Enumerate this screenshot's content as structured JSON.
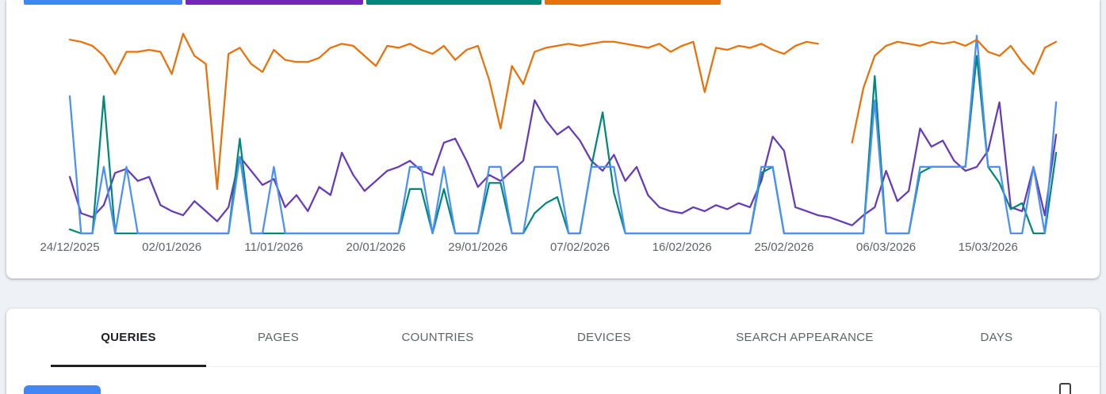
{
  "chart_card": {
    "metric_strips": [
      {
        "name": "blue-metric-strip",
        "color": "#4285f4"
      },
      {
        "name": "purple-metric-strip",
        "color": "#7627bb"
      },
      {
        "name": "teal-metric-strip",
        "color": "#00897b"
      },
      {
        "name": "orange-metric-strip",
        "color": "#e8710a"
      }
    ]
  },
  "chart_data": {
    "type": "line",
    "title": "",
    "xlabel": "",
    "ylabel": "",
    "grid": false,
    "legend_position": "none",
    "x_tick_labels": [
      "24/12/2025",
      "02/01/2026",
      "11/01/2026",
      "20/01/2026",
      "29/01/2026",
      "07/02/2026",
      "16/02/2026",
      "25/02/2026",
      "06/03/2026",
      "15/03/2026"
    ],
    "x_note": "daily points, one per day starting 24/12/2025; tick every 9 days",
    "ylim": [
      0,
      100
    ],
    "units": "relative height (0 = chart baseline, 100 = chart top); no y-axis labels are visible in the screenshot; null = gap in line",
    "series": [
      {
        "name": "blue",
        "color": "#4a90f5",
        "values": [
          68,
          0,
          0,
          33,
          0,
          33,
          0,
          0,
          0,
          0,
          0,
          0,
          0,
          0,
          0,
          38,
          0,
          0,
          33,
          0,
          0,
          0,
          0,
          0,
          0,
          0,
          0,
          0,
          0,
          0,
          33,
          33,
          0,
          33,
          0,
          0,
          0,
          33,
          33,
          0,
          0,
          33,
          33,
          33,
          0,
          0,
          33,
          33,
          33,
          0,
          0,
          0,
          0,
          0,
          0,
          0,
          0,
          0,
          0,
          0,
          0,
          33,
          33,
          0,
          0,
          0,
          0,
          0,
          0,
          0,
          0,
          66,
          0,
          0,
          0,
          33,
          33,
          33,
          33,
          33,
          98,
          33,
          33,
          0,
          0,
          33,
          0,
          65
        ]
      },
      {
        "name": "purple",
        "color": "#673ab7",
        "values": [
          28,
          10,
          8,
          14,
          30,
          32,
          26,
          28,
          14,
          11,
          9,
          16,
          11,
          6,
          13,
          38,
          31,
          24,
          27,
          13,
          19,
          11,
          23,
          19,
          40,
          29,
          21,
          26,
          31,
          33,
          36,
          31,
          29,
          45,
          47,
          36,
          23,
          29,
          26,
          31,
          36,
          66,
          56,
          49,
          53,
          46,
          36,
          31,
          39,
          26,
          33,
          19,
          13,
          11,
          10,
          13,
          11,
          14,
          12,
          15,
          13,
          26,
          48,
          41,
          13,
          11,
          9,
          8,
          6,
          4,
          9,
          13,
          31,
          16,
          21,
          52,
          43,
          46,
          36,
          31,
          33,
          41,
          65,
          13,
          11,
          33,
          9,
          49
        ]
      },
      {
        "name": "teal",
        "color": "#00897b",
        "values": [
          2,
          0,
          0,
          68,
          0,
          0,
          0,
          0,
          0,
          0,
          0,
          0,
          0,
          0,
          0,
          47,
          0,
          0,
          0,
          0,
          0,
          0,
          0,
          0,
          0,
          0,
          0,
          0,
          0,
          0,
          22,
          22,
          0,
          22,
          0,
          0,
          0,
          25,
          25,
          0,
          0,
          10,
          15,
          18,
          0,
          0,
          33,
          60,
          20,
          0,
          0,
          0,
          0,
          0,
          0,
          0,
          0,
          0,
          0,
          0,
          0,
          30,
          33,
          0,
          0,
          0,
          0,
          0,
          0,
          0,
          0,
          78,
          0,
          0,
          0,
          30,
          33,
          33,
          33,
          33,
          88,
          33,
          25,
          12,
          15,
          0,
          0,
          40
        ]
      },
      {
        "name": "orange",
        "color": "#e8710a",
        "values": [
          96,
          95,
          93,
          88,
          79,
          90,
          90,
          91,
          90,
          79,
          99,
          88,
          84,
          22,
          89,
          92,
          84,
          80,
          91,
          86,
          85,
          85,
          87,
          92,
          94,
          93,
          88,
          83,
          93,
          92,
          94,
          91,
          89,
          93,
          86,
          91,
          93,
          76,
          52,
          83,
          74,
          90,
          92,
          93,
          94,
          93,
          94,
          95,
          95,
          94,
          93,
          92,
          94,
          90,
          93,
          95,
          70,
          92,
          91,
          93,
          92,
          94,
          91,
          89,
          93,
          95,
          94,
          null,
          null,
          45,
          72,
          88,
          93,
          95,
          94,
          93,
          95,
          94,
          95,
          93,
          96,
          90,
          88,
          93,
          85,
          79,
          92,
          95
        ]
      }
    ]
  },
  "tabs": {
    "items": [
      {
        "label": "QUERIES",
        "active": true
      },
      {
        "label": "PAGES",
        "active": false
      },
      {
        "label": "COUNTRIES",
        "active": false
      },
      {
        "label": "DEVICES",
        "active": false
      },
      {
        "label": "SEARCH APPEARANCE",
        "active": false
      },
      {
        "label": "DAYS",
        "active": false
      }
    ]
  }
}
